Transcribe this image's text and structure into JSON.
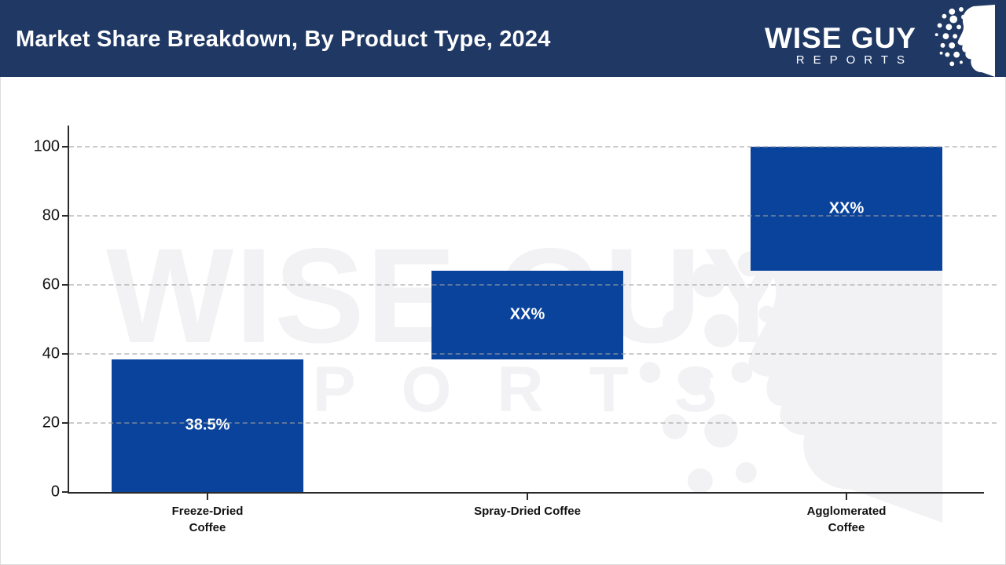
{
  "header": {
    "title": "Market Share Breakdown, By Product Type, 2024",
    "brand": {
      "name": "WISE GUY",
      "sub": "REPORTS"
    }
  },
  "watermark": {
    "line1": "WISE GUY",
    "line2": "REPORTS"
  },
  "chart_data": {
    "type": "bar",
    "subtype": "waterfall",
    "title": "Market Share Breakdown, By Product Type, 2024",
    "categories": [
      [
        "Freeze-Dried",
        "Coffee"
      ],
      [
        "Spray-Dried Coffee"
      ],
      [
        "Agglomerated",
        "Coffee"
      ]
    ],
    "segments": [
      {
        "category": "Freeze-Dried Coffee",
        "start": 0,
        "end": 38.5,
        "label": "38.5%"
      },
      {
        "category": "Spray-Dried Coffee",
        "start": 38.5,
        "end": 64,
        "label": "XX%"
      },
      {
        "category": "Agglomerated Coffee",
        "start": 64,
        "end": 100,
        "label": "XX%"
      }
    ],
    "ylim": [
      0,
      100
    ],
    "yticks": [
      0,
      20,
      40,
      60,
      80,
      100
    ],
    "xlabel": "",
    "ylabel": "",
    "grid": "horizontal-dashed",
    "legend": "none",
    "bar_color": "#0a439b",
    "bar_value_color": "#ffffff"
  },
  "colors": {
    "header_bg": "#203864",
    "bar": "#0a439b",
    "axis": "#2b2b2b",
    "watermark": "#f2f2f4",
    "gridline": "rgba(160,160,160,0.55)"
  }
}
